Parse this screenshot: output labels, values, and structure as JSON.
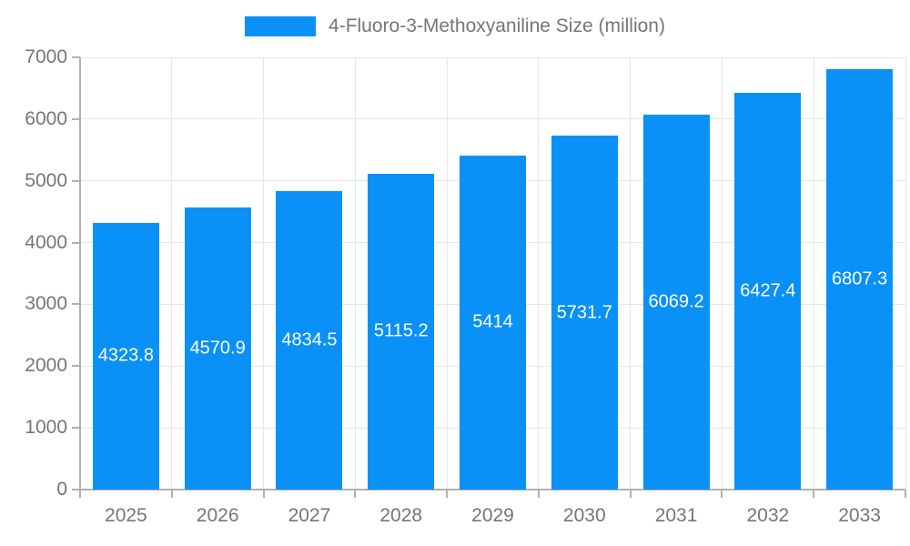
{
  "legend": {
    "label": "4-Fluoro-3-Methoxyaniline Size (million)"
  },
  "chart_data": {
    "type": "bar",
    "title": "4-Fluoro-3-Methoxyaniline Size (million)",
    "categories": [
      "2025",
      "2026",
      "2027",
      "2028",
      "2029",
      "2030",
      "2031",
      "2032",
      "2033"
    ],
    "values": [
      4323.8,
      4570.9,
      4834.5,
      5115.2,
      5414,
      5731.7,
      6069.2,
      6427.4,
      6807.3
    ],
    "value_labels": [
      "4323.8",
      "4570.9",
      "4834.5",
      "5115.2",
      "5414",
      "5731.7",
      "6069.2",
      "6427.4",
      "6807.3"
    ],
    "xlabel": "",
    "ylabel": "",
    "ylim": [
      0,
      7000
    ],
    "yticks": [
      0,
      1000,
      2000,
      3000,
      4000,
      5000,
      6000,
      7000
    ],
    "grid": true,
    "legend_position": "top-center",
    "colors": {
      "bar": "#0991f8",
      "grid": "#e6e6e6",
      "axis": "#b0b0b0",
      "tick_label": "#757575",
      "value_label": "#ffffff",
      "background": "#ffffff"
    }
  }
}
